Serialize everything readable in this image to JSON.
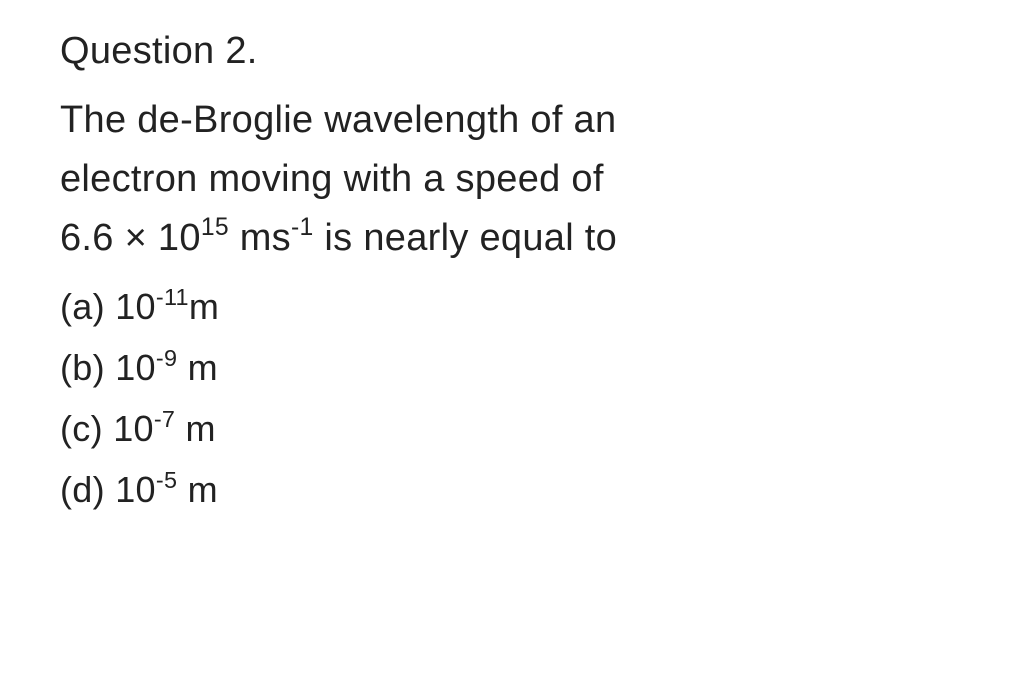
{
  "question": {
    "header": "Question 2.",
    "stem_line1": "The de-Broglie wavelength of an",
    "stem_line2": "electron moving with a speed of",
    "stem_value_prefix": "6.6 × 10",
    "stem_value_exp": "15",
    "stem_value_unit_prefix": " ms",
    "stem_value_unit_exp": "-1",
    "stem_value_suffix": " is nearly equal to",
    "options": [
      {
        "label": "(a) ",
        "base": "10",
        "exp": "-11",
        "unit": "m"
      },
      {
        "label": "(b) ",
        "base": "10",
        "exp": "-9",
        "unit": " m"
      },
      {
        "label": "(c) ",
        "base": "10",
        "exp": "-7",
        "unit": " m"
      },
      {
        "label": "(d) ",
        "base": "10",
        "exp": "-5",
        "unit": " m"
      }
    ]
  },
  "style": {
    "background_color": "#ffffff",
    "text_color": "#222222",
    "header_fontsize": 38,
    "stem_fontsize": 38,
    "option_fontsize": 36,
    "font_family": "Segoe UI, Helvetica Neue, Arial, sans-serif",
    "line_height_stem": 1.55,
    "line_height_option": 1.7
  }
}
